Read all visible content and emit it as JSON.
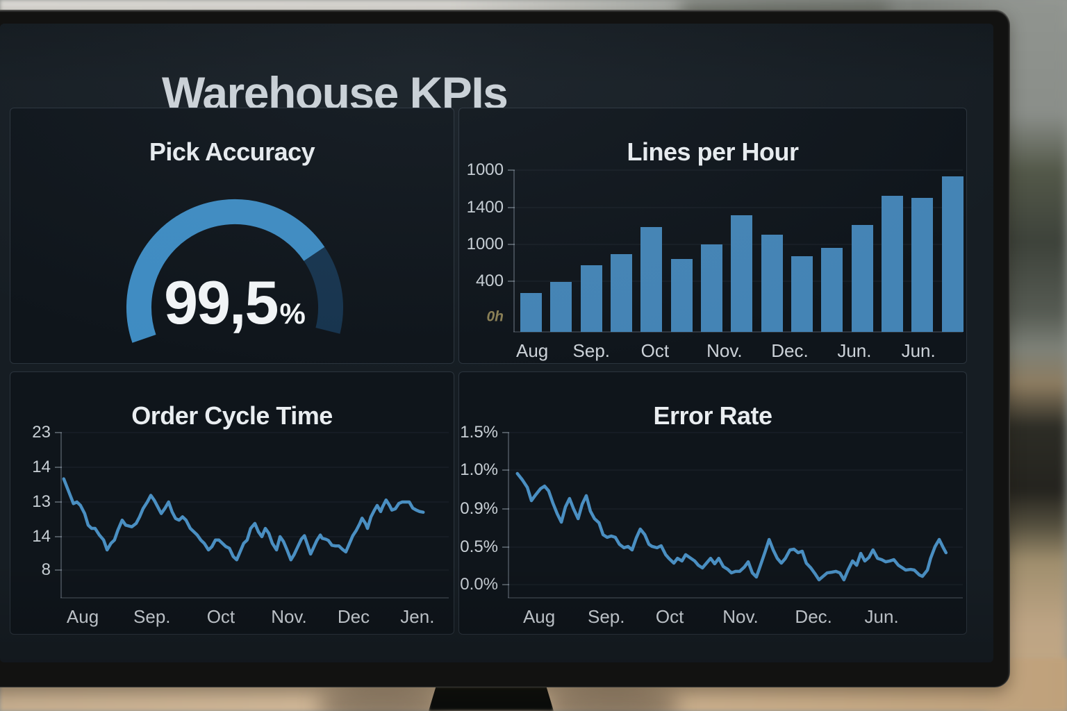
{
  "title": "Warehouse KPIs",
  "colors": {
    "accent_blue": "#4484b5",
    "line_blue": "#4a8fc2",
    "gauge_fill": "#3f8cc2",
    "gauge_rest": "#17344e",
    "panel_bg": "#0f151b",
    "screen_bg": "#161d23",
    "artifact_text": "#8a7f55"
  },
  "gauge_panel": {
    "title": "Pick Accuracy",
    "value": "99,5",
    "unit": "%"
  },
  "chart_data": [
    {
      "id": "lines-per-hour",
      "type": "bar",
      "title": "Lines per Hour",
      "ylabel": "",
      "xlabel": "",
      "grid": true,
      "legend": "none",
      "y_ticks": [
        {
          "label": "1000",
          "pct": 100
        },
        {
          "label": "1400",
          "pct": 76.8
        },
        {
          "label": "1000",
          "pct": 54.1
        },
        {
          "label": "400",
          "pct": 31.3
        },
        {
          "label": "0h",
          "pct": 9.4,
          "artifact": true
        }
      ],
      "x_ticks": [
        {
          "label": "Aug",
          "pct": 3.9
        },
        {
          "label": "Sep.",
          "pct": 17.1
        },
        {
          "label": "Oct",
          "pct": 31.3
        },
        {
          "label": "Nov.",
          "pct": 46.8
        },
        {
          "label": "Dec.",
          "pct": 61.4
        },
        {
          "label": "Jun.",
          "pct": 75.8
        },
        {
          "label": "Jun.",
          "pct": 90.1
        }
      ],
      "bars": {
        "first_pct": 1.24,
        "pitch_pct": 6.72,
        "width_pct": 4.81
      },
      "values_pct": [
        24,
        31,
        41,
        48,
        65,
        45,
        54,
        72,
        60,
        47,
        52,
        66,
        84,
        83,
        96
      ]
    },
    {
      "id": "order-cycle-time",
      "type": "line",
      "title": "Order Cycle Time",
      "ylabel": "",
      "xlabel": "",
      "grid": true,
      "legend": "none",
      "y_ticks": [
        {
          "label": "23",
          "pct": 100
        },
        {
          "label": "14",
          "pct": 79
        },
        {
          "label": "13",
          "pct": 58
        },
        {
          "label": "14",
          "pct": 37
        },
        {
          "label": "8",
          "pct": 16.8
        }
      ],
      "x_ticks": [
        {
          "label": "Aug",
          "pct": 5.4
        },
        {
          "label": "Sep.",
          "pct": 23.3
        },
        {
          "label": "Oct",
          "pct": 41.1
        },
        {
          "label": "Nov.",
          "pct": 58.7
        },
        {
          "label": "Dec",
          "pct": 75.4
        },
        {
          "label": "Jen.",
          "pct": 91.9
        }
      ],
      "points_pct": [
        [
          0.5,
          72
        ],
        [
          2,
          63
        ],
        [
          3,
          57
        ],
        [
          3.9,
          58
        ],
        [
          4.8,
          56
        ],
        [
          5.9,
          51
        ],
        [
          6.8,
          44
        ],
        [
          7.7,
          42
        ],
        [
          8.6,
          42
        ],
        [
          9.7,
          38
        ],
        [
          10.8,
          35
        ],
        [
          11.7,
          29
        ],
        [
          12.7,
          33
        ],
        [
          13.6,
          35
        ],
        [
          14.5,
          41
        ],
        [
          15.6,
          47
        ],
        [
          16.5,
          44
        ],
        [
          18.1,
          43
        ],
        [
          19.2,
          45
        ],
        [
          20.1,
          49
        ],
        [
          21,
          54
        ],
        [
          22.1,
          58
        ],
        [
          23,
          62
        ],
        [
          23.9,
          59
        ],
        [
          24.8,
          55
        ],
        [
          25.7,
          51
        ],
        [
          26.6,
          54
        ],
        [
          27.6,
          58
        ],
        [
          28.5,
          52
        ],
        [
          29.4,
          48
        ],
        [
          30.3,
          47
        ],
        [
          31.2,
          49
        ],
        [
          32.1,
          47
        ],
        [
          33.2,
          42
        ],
        [
          34.1,
          40
        ],
        [
          35,
          38
        ],
        [
          35.9,
          35
        ],
        [
          36.8,
          33
        ],
        [
          37.9,
          29
        ],
        [
          38.8,
          31
        ],
        [
          39.7,
          35
        ],
        [
          40.6,
          35
        ],
        [
          41.5,
          33
        ],
        [
          42.4,
          31
        ],
        [
          43.3,
          30
        ],
        [
          44.3,
          25
        ],
        [
          45.2,
          23
        ],
        [
          46.1,
          28
        ],
        [
          47,
          33
        ],
        [
          47.9,
          35
        ],
        [
          48.8,
          42
        ],
        [
          49.9,
          45
        ],
        [
          50.8,
          40
        ],
        [
          51.7,
          37
        ],
        [
          52.6,
          42
        ],
        [
          53.5,
          39
        ],
        [
          54.4,
          33
        ],
        [
          55.5,
          29
        ],
        [
          56.4,
          37
        ],
        [
          57.3,
          34
        ],
        [
          58.2,
          29
        ],
        [
          59.2,
          23
        ],
        [
          60,
          26
        ],
        [
          61,
          31
        ],
        [
          61.9,
          35.5
        ],
        [
          62.7,
          37.6
        ],
        [
          64.3,
          26.5
        ],
        [
          65.9,
          34.7
        ],
        [
          66.8,
          38
        ],
        [
          67.3,
          36
        ],
        [
          68.2,
          35.5
        ],
        [
          68.9,
          34.7
        ],
        [
          69.8,
          31.8
        ],
        [
          70.7,
          31.4
        ],
        [
          71.6,
          31.4
        ],
        [
          72.5,
          29.4
        ],
        [
          73.4,
          27.8
        ],
        [
          74.3,
          32.7
        ],
        [
          75.2,
          37.6
        ],
        [
          76.1,
          40.8
        ],
        [
          77,
          44.9
        ],
        [
          77.6,
          48.2
        ],
        [
          78.5,
          44.9
        ],
        [
          79,
          42
        ],
        [
          79.9,
          49
        ],
        [
          80.8,
          53.1
        ],
        [
          81.5,
          55.9
        ],
        [
          82.4,
          52.2
        ],
        [
          82.9,
          55.1
        ],
        [
          83.8,
          59.2
        ],
        [
          84.7,
          55.9
        ],
        [
          85.3,
          53.1
        ],
        [
          86.2,
          53.9
        ],
        [
          87.1,
          57.1
        ],
        [
          88,
          58
        ],
        [
          88.9,
          58
        ],
        [
          89.8,
          58
        ],
        [
          90.7,
          54.3
        ],
        [
          91.6,
          53.1
        ],
        [
          92.5,
          52.2
        ],
        [
          93.4,
          51.8
        ]
      ]
    },
    {
      "id": "error-rate",
      "type": "line",
      "title": "Error Rate",
      "ylabel": "",
      "xlabel": "",
      "grid": true,
      "legend": "none",
      "y_ticks": [
        {
          "label": "1.5%",
          "pct": 100
        },
        {
          "label": "1.0%",
          "pct": 77.3
        },
        {
          "label": "0.9%",
          "pct": 53.8
        },
        {
          "label": "0.5%",
          "pct": 30.7
        },
        {
          "label": "0.0%",
          "pct": 8
        }
      ],
      "x_ticks": [
        {
          "label": "Aug",
          "pct": 6.6
        },
        {
          "label": "Sep.",
          "pct": 21.4
        },
        {
          "label": "Oct",
          "pct": 35.4
        },
        {
          "label": "Nov.",
          "pct": 51.0
        },
        {
          "label": "Dec.",
          "pct": 67.1
        },
        {
          "label": "Jun.",
          "pct": 82.1
        }
      ],
      "points_pct": [
        [
          1.8,
          75.2
        ],
        [
          2.9,
          71.4
        ],
        [
          4,
          66.8
        ],
        [
          4.9,
          58.8
        ],
        [
          5.8,
          62.2
        ],
        [
          6.9,
          66
        ],
        [
          7.8,
          67.6
        ],
        [
          8.7,
          64.7
        ],
        [
          9.6,
          57.6
        ],
        [
          10.6,
          50.8
        ],
        [
          11.5,
          45.8
        ],
        [
          12.4,
          55
        ],
        [
          13.3,
          60.1
        ],
        [
          14.2,
          53.8
        ],
        [
          15.2,
          47.9
        ],
        [
          16.1,
          56.7
        ],
        [
          17,
          61.8
        ],
        [
          17.9,
          52.5
        ],
        [
          18.8,
          47.9
        ],
        [
          19.8,
          45.4
        ],
        [
          20.7,
          38.2
        ],
        [
          21.6,
          36.6
        ],
        [
          22.5,
          37.4
        ],
        [
          23.4,
          36.6
        ],
        [
          24.3,
          32.4
        ],
        [
          25.3,
          30.3
        ],
        [
          26.2,
          31.1
        ],
        [
          27.1,
          29
        ],
        [
          28,
          36.1
        ],
        [
          28.9,
          41.6
        ],
        [
          29.9,
          38.2
        ],
        [
          30.8,
          32.4
        ],
        [
          31.5,
          31.1
        ],
        [
          32.6,
          30.3
        ],
        [
          33.5,
          31.5
        ],
        [
          34.5,
          26.1
        ],
        [
          35.2,
          23.9
        ],
        [
          36.3,
          21
        ],
        [
          37.1,
          23.9
        ],
        [
          38.1,
          22.3
        ],
        [
          38.9,
          26.1
        ],
        [
          39.8,
          24.4
        ],
        [
          40.9,
          22.3
        ],
        [
          41.7,
          19.7
        ],
        [
          42.6,
          18.1
        ],
        [
          43.5,
          21
        ],
        [
          44.4,
          23.9
        ],
        [
          45.3,
          20.6
        ],
        [
          46.2,
          23.9
        ],
        [
          47.2,
          18.9
        ],
        [
          48.2,
          17.2
        ],
        [
          49,
          15.1
        ],
        [
          49.9,
          16
        ],
        [
          50.8,
          16
        ],
        [
          51.8,
          18.5
        ],
        [
          52.7,
          21.8
        ],
        [
          53.6,
          15.1
        ],
        [
          54.5,
          12.6
        ],
        [
          55.4,
          19.7
        ],
        [
          56.4,
          27.7
        ],
        [
          57.3,
          35.3
        ],
        [
          58.2,
          29
        ],
        [
          59.1,
          23.9
        ],
        [
          60,
          21
        ],
        [
          60.9,
          23.9
        ],
        [
          61.9,
          29
        ],
        [
          62.8,
          29.4
        ],
        [
          63.7,
          27.3
        ],
        [
          64.6,
          28.2
        ],
        [
          65.5,
          21
        ],
        [
          66.5,
          18.1
        ],
        [
          67.4,
          14.7
        ],
        [
          68.3,
          10.9
        ],
        [
          69.2,
          13
        ],
        [
          70.1,
          15.1
        ],
        [
          71.1,
          15.5
        ],
        [
          72,
          16
        ],
        [
          72.9,
          15.1
        ],
        [
          73.8,
          10.9
        ],
        [
          74.7,
          16.8
        ],
        [
          75.7,
          22.3
        ],
        [
          76.6,
          19.7
        ],
        [
          77.5,
          26.9
        ],
        [
          78.4,
          22.3
        ],
        [
          79.3,
          24.4
        ],
        [
          80.2,
          29
        ],
        [
          81.2,
          23.9
        ],
        [
          82.1,
          23.1
        ],
        [
          83,
          21.8
        ],
        [
          83.9,
          22.3
        ],
        [
          84.8,
          23.1
        ],
        [
          85.8,
          19.7
        ],
        [
          86.7,
          18.1
        ],
        [
          87.4,
          16.8
        ],
        [
          88.5,
          17.2
        ],
        [
          89.3,
          16.8
        ],
        [
          90.4,
          13.9
        ],
        [
          91.1,
          13
        ],
        [
          92.2,
          16.8
        ],
        [
          92.9,
          23.9
        ],
        [
          93.9,
          31.1
        ],
        [
          94.8,
          35.3
        ],
        [
          95.7,
          30.3
        ],
        [
          96.3,
          27.3
        ]
      ]
    }
  ]
}
